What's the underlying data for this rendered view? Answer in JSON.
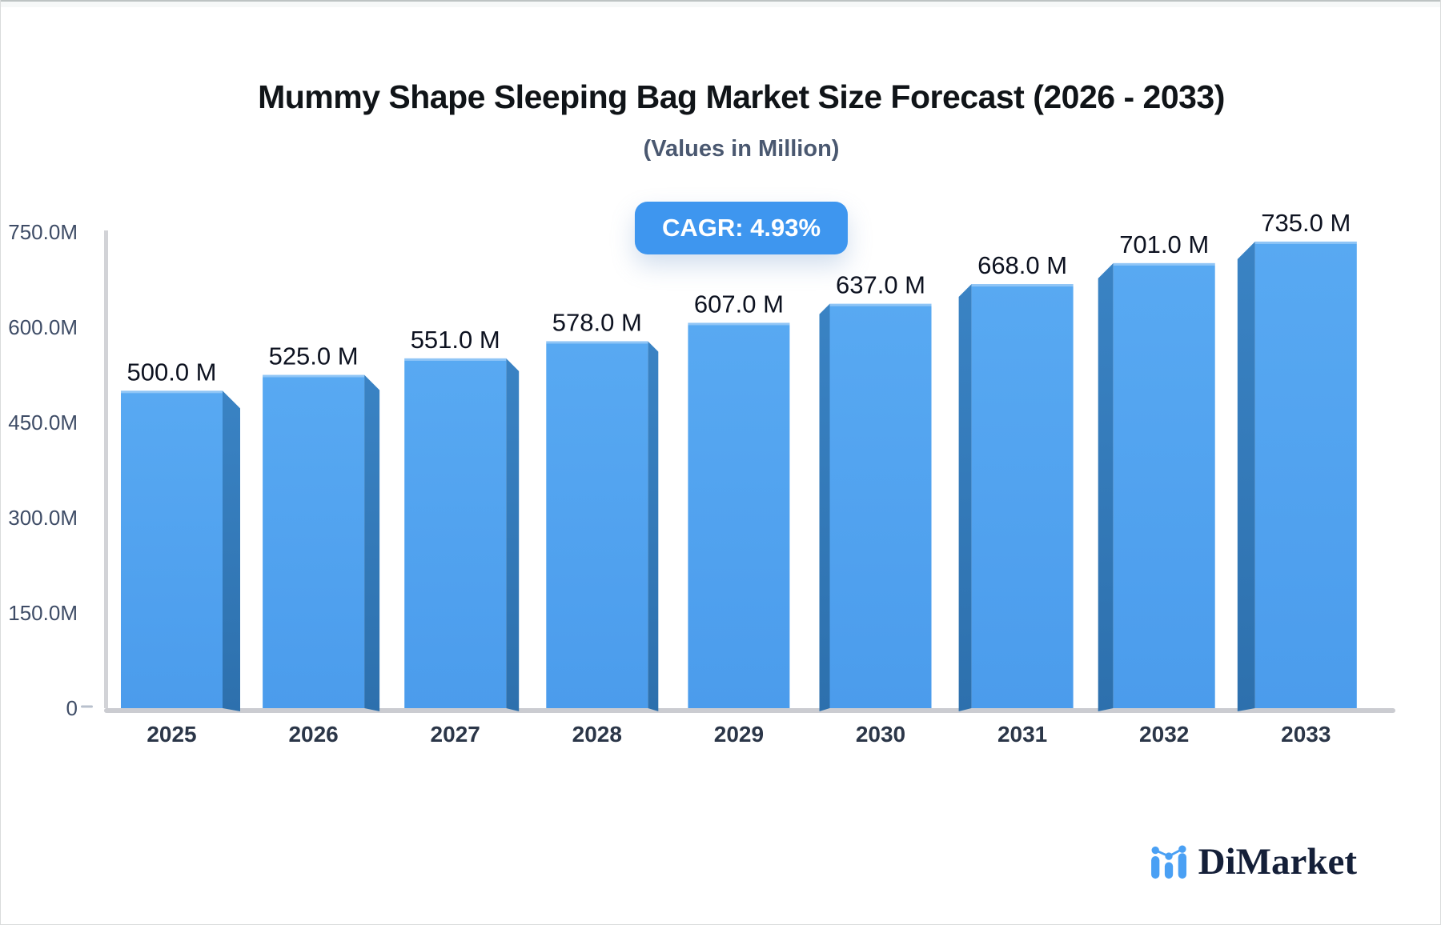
{
  "header": {
    "title": "Mummy Shape Sleeping Bag Market Size Forecast (2026 - 2033)",
    "subtitle": "(Values in Million)"
  },
  "badge": {
    "label": "CAGR: 4.93%"
  },
  "brand": {
    "name": "DiMarket",
    "icon": "mini-bar-line-chart-icon"
  },
  "colors": {
    "bar_front_top": "#58a9f2",
    "bar_front_bottom": "#4b9cec",
    "bar_side_top": "#3a83c4",
    "bar_side_bottom": "#2d70ad",
    "bar_top_highlight": "rgba(255,255,255,0.33)",
    "badge_bg": "#3e96ef",
    "badge_text": "#ffffff",
    "axis_line": "#d2d3d7",
    "baseline": "#cbccd1",
    "zero_tick": "#b8c0cd",
    "y_label": "#3e4c66",
    "x_label": "#2b3648",
    "value_label": "#0d1220",
    "title": "#101418",
    "subtitle": "#4a5870",
    "brand_blue": "#4aa0f4",
    "brand_navy": "#141f38"
  },
  "chart_data": {
    "type": "bar",
    "title": "Mummy Shape Sleeping Bag Market Size Forecast (2026 - 2033)",
    "subtitle": "(Values in Million)",
    "cagr_label": "CAGR: 4.93%",
    "categories": [
      "2025",
      "2026",
      "2027",
      "2028",
      "2029",
      "2030",
      "2031",
      "2032",
      "2033"
    ],
    "values": [
      500.0,
      525.0,
      551.0,
      578.0,
      607.0,
      637.0,
      668.0,
      701.0,
      735.0
    ],
    "bar_labels": [
      "500.0 M",
      "525.0 M",
      "551.0 M",
      "578.0 M",
      "607.0 M",
      "637.0 M",
      "668.0 M",
      "701.0 M",
      "735.0 M"
    ],
    "y_ticks": [
      {
        "value": 0,
        "label": "0"
      },
      {
        "value": 150,
        "label": "150.0M"
      },
      {
        "value": 300,
        "label": "300.0M"
      },
      {
        "value": 450,
        "label": "450.0M"
      },
      {
        "value": 600,
        "label": "600.0M"
      },
      {
        "value": 750,
        "label": "750.0M"
      }
    ],
    "ylim": [
      0,
      750
    ],
    "unit": "Million",
    "grid": false,
    "legend": false,
    "style": "pseudo-3d-perspective-bars"
  }
}
